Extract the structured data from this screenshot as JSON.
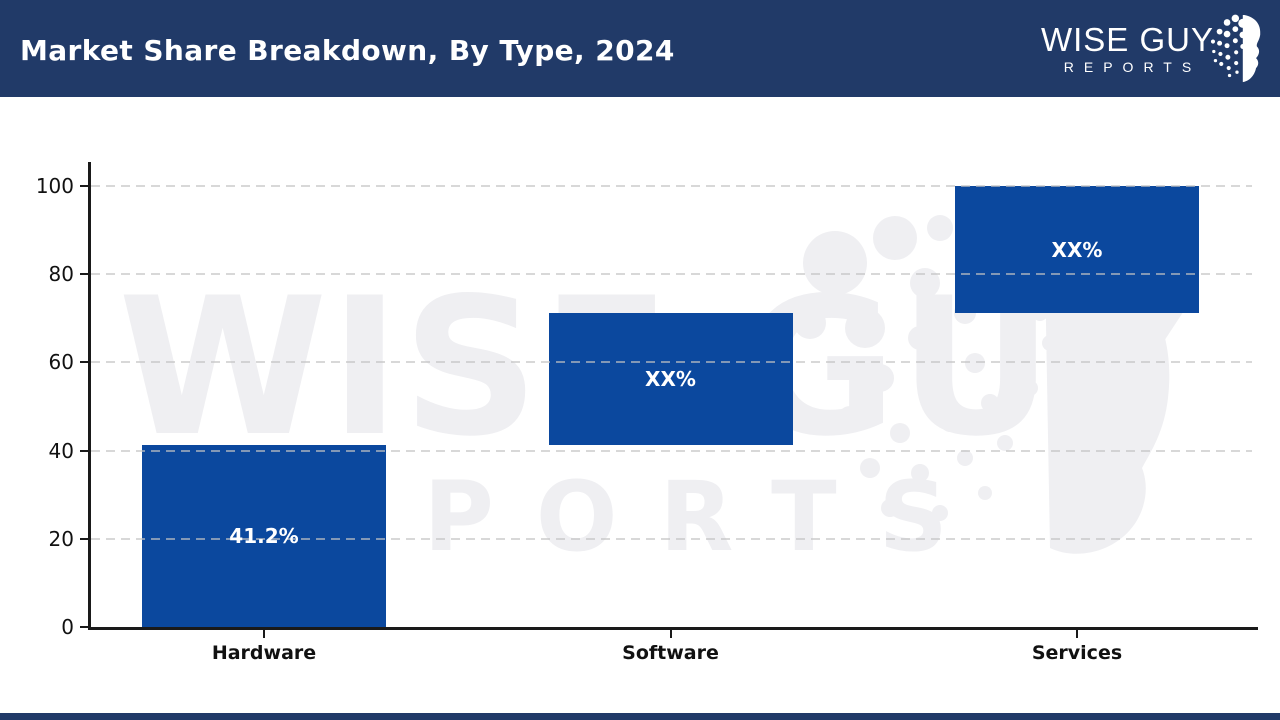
{
  "header": {
    "title": "Market Share Breakdown, By Type, 2024",
    "logo": {
      "line1": "WISE GUY",
      "line2": "REPORTS"
    }
  },
  "watermark": {
    "line1": "WISE GUY",
    "line2": "REPORTS"
  },
  "chart_data": {
    "type": "bar",
    "subtype": "waterfall-breakdown",
    "title": "Market Share Breakdown, By Type, 2024",
    "categories": [
      "Hardware",
      "Software",
      "Services"
    ],
    "segments": [
      {
        "category": "Hardware",
        "start": 0,
        "end": 41.2,
        "label": "41.2%"
      },
      {
        "category": "Software",
        "start": 41.2,
        "end": 71.2,
        "label": "XX%"
      },
      {
        "category": "Services",
        "start": 71.2,
        "end": 100,
        "label": "XX%"
      }
    ],
    "values_displayed": [
      "41.2%",
      "XX%",
      "XX%"
    ],
    "ylim": [
      0,
      100
    ],
    "yticks": [
      0,
      20,
      40,
      60,
      80,
      100
    ],
    "grid": "horizontal-dashed",
    "legend": "none",
    "xlabel": "",
    "ylabel": ""
  },
  "colors": {
    "header_navy": "#213a68",
    "footer_navy": "#213a68",
    "bar_blue": "#0b489e",
    "bar_label_white": "#ffffff",
    "grid_gray": "#dedede",
    "axis_dark": "#1a1a1a",
    "watermark_gray": "#efeff2"
  }
}
